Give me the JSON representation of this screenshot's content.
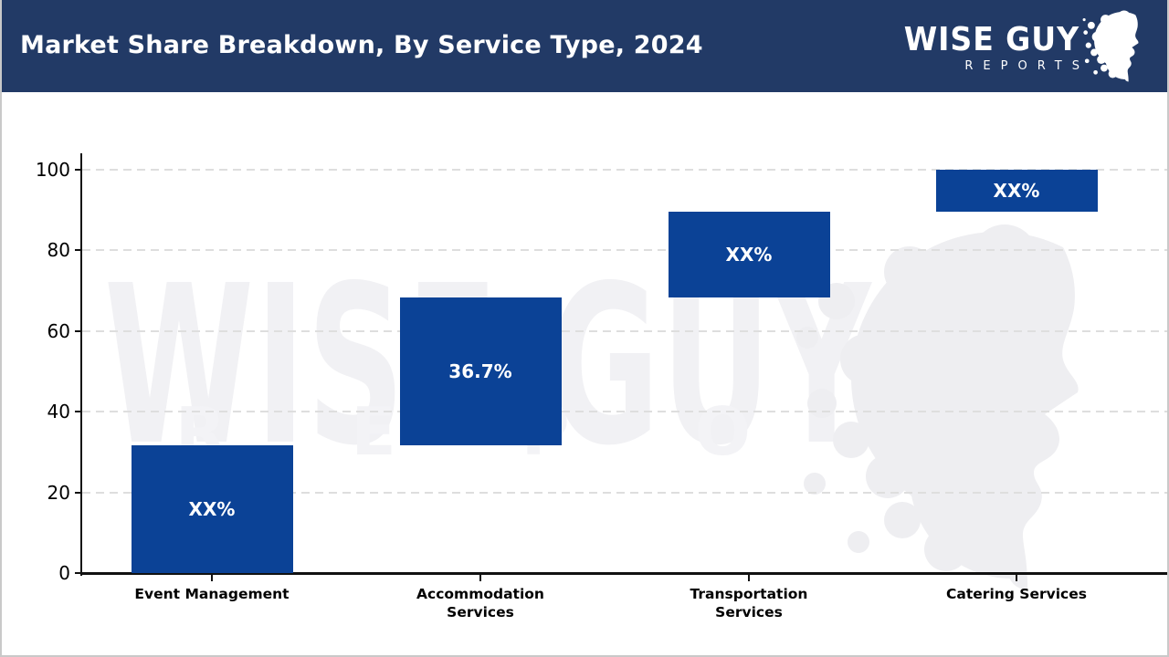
{
  "header": {
    "title": "Market Share Breakdown, By Service Type, 2024",
    "brand": {
      "line1": "WISE GUY",
      "line2": "REPORTS"
    },
    "bg_color": "#223A66",
    "text_color": "#FFFFFF"
  },
  "watermark": {
    "line1": "WISE GUY",
    "line2": "R E P O R T S"
  },
  "chart_data": {
    "type": "bar",
    "subtype": "floating-segment-waterfall",
    "title": "Market Share Breakdown, By Service Type, 2024",
    "categories": [
      "Event Management",
      "Accommodation Services",
      "Transportation Services",
      "Catering Services"
    ],
    "tick_labels": [
      "Event Management",
      "Accommodation\nServices",
      "Transportation\nServices",
      "Catering Services"
    ],
    "segments": [
      {
        "category": "Event Management",
        "start": 0,
        "end": 31.7,
        "label": "XX%"
      },
      {
        "category": "Accommodation Services",
        "start": 31.7,
        "end": 68.4,
        "label": "36.7%"
      },
      {
        "category": "Transportation Services",
        "start": 68.4,
        "end": 89.6,
        "label": "XX%"
      },
      {
        "category": "Catering Services",
        "start": 89.6,
        "end": 100,
        "label": "XX%"
      }
    ],
    "ylim": [
      0,
      100
    ],
    "yticks": [
      0,
      20,
      40,
      60,
      80,
      100
    ],
    "grid": "horizontal dashed",
    "legend": "none",
    "bar_color": "#0B4296",
    "bar_label_color": "#FFFFFF",
    "axis_color": "#111111"
  }
}
